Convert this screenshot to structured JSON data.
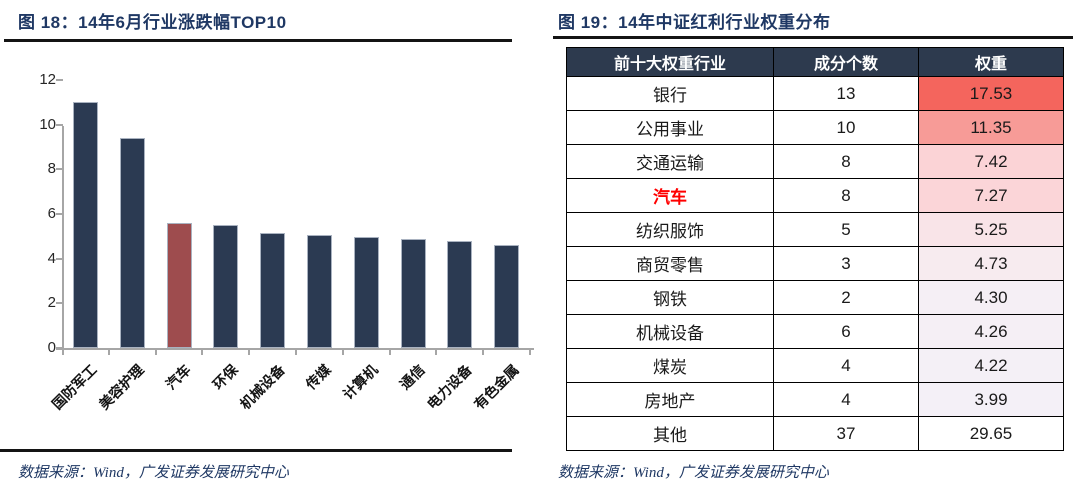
{
  "left_panel": {
    "title": "图 18：14年6月行业涨跌幅TOP10",
    "source": "数据来源：Wind，广发证券发展研究中心"
  },
  "right_panel": {
    "title": "图 19：14年中证红利行业权重分布",
    "source": "数据来源：Wind，广发证券发展研究中心",
    "table": {
      "headers": [
        "前十大权重行业",
        "成分个数",
        "权重"
      ],
      "rows": [
        {
          "industry": "银行",
          "count": "13",
          "weight": "17.53",
          "weight_bg": "#f4655d",
          "highlight": false
        },
        {
          "industry": "公用事业",
          "count": "10",
          "weight": "11.35",
          "weight_bg": "#f79b97",
          "highlight": false
        },
        {
          "industry": "交通运输",
          "count": "8",
          "weight": "7.42",
          "weight_bg": "#fbd3d6",
          "highlight": false
        },
        {
          "industry": "汽车",
          "count": "8",
          "weight": "7.27",
          "weight_bg": "#fbd5d8",
          "highlight": true
        },
        {
          "industry": "纺织服饰",
          "count": "5",
          "weight": "5.25",
          "weight_bg": "#f9e4e8",
          "highlight": false
        },
        {
          "industry": "商贸零售",
          "count": "3",
          "weight": "4.73",
          "weight_bg": "#f7ebef",
          "highlight": false
        },
        {
          "industry": "钢铁",
          "count": "2",
          "weight": "4.30",
          "weight_bg": "#f5eff5",
          "highlight": false
        },
        {
          "industry": "机械设备",
          "count": "6",
          "weight": "4.26",
          "weight_bg": "#f5eff5",
          "highlight": false
        },
        {
          "industry": "煤炭",
          "count": "4",
          "weight": "4.22",
          "weight_bg": "#f4f0f6",
          "highlight": false
        },
        {
          "industry": "房地产",
          "count": "4",
          "weight": "3.99",
          "weight_bg": "#f4f0f7",
          "highlight": false
        },
        {
          "industry": "其他",
          "count": "37",
          "weight": "29.65",
          "weight_bg": "#ffffff",
          "highlight": false
        }
      ]
    }
  },
  "chart_data": {
    "type": "bar",
    "title": "14年6月行业涨跌幅TOP10",
    "categories": [
      "国防军工",
      "美容护理",
      "汽车",
      "环保",
      "机械设备",
      "传媒",
      "计算机",
      "通信",
      "电力设备",
      "有色金属"
    ],
    "values": [
      11.0,
      9.4,
      5.6,
      5.5,
      5.15,
      5.05,
      4.95,
      4.9,
      4.8,
      4.6
    ],
    "highlight_index": 2,
    "bar_color": "#2b3a52",
    "highlight_color": "#9e4c4e",
    "xlabel": "",
    "ylabel": "",
    "ylim": [
      0,
      12
    ],
    "yticks": [
      0,
      2,
      4,
      6,
      8,
      10,
      12
    ],
    "grid": false,
    "legend_position": "none"
  },
  "colors": {
    "title_navy": "#1f3864",
    "bar_navy": "#2b3a52",
    "bar_red": "#9e4c4e",
    "table_header_bg": "#2d3a4e",
    "table_header_text": "#ffffff",
    "highlight_text": "#ff0000",
    "axis_gray": "#a6a6a6",
    "rule_black": "#141414"
  }
}
